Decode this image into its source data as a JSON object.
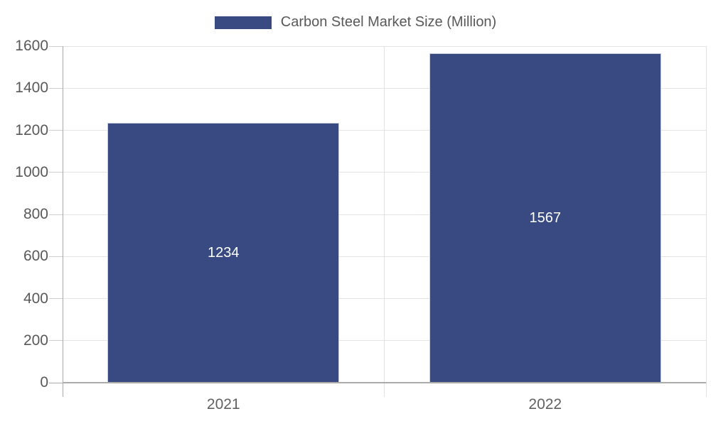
{
  "chart_data": {
    "type": "bar",
    "title": "Carbon Steel Market Size (Million)",
    "categories": [
      "2021",
      "2022"
    ],
    "values": [
      1234,
      1567
    ],
    "value_labels": [
      "1234",
      "1567"
    ],
    "series": [
      {
        "name": "Carbon Steel Market Size (Million)",
        "values": [
          1234,
          1567
        ]
      }
    ],
    "xlabel": "",
    "ylabel": "",
    "ylim": [
      0,
      1600
    ],
    "yticks": [
      0,
      200,
      400,
      600,
      800,
      1000,
      1200,
      1400,
      1600
    ],
    "grid": true,
    "legend": {
      "label": "Carbon Steel Market Size (Million)",
      "position": "top-center",
      "swatch_color": "#384a81"
    },
    "colors": {
      "bar": "#384a81",
      "bar_border": "#c9cede",
      "value_label": "#ffffff",
      "axis": "#a9a9a9",
      "grid": "#e4e4e4",
      "tick_text": "#595959"
    }
  }
}
